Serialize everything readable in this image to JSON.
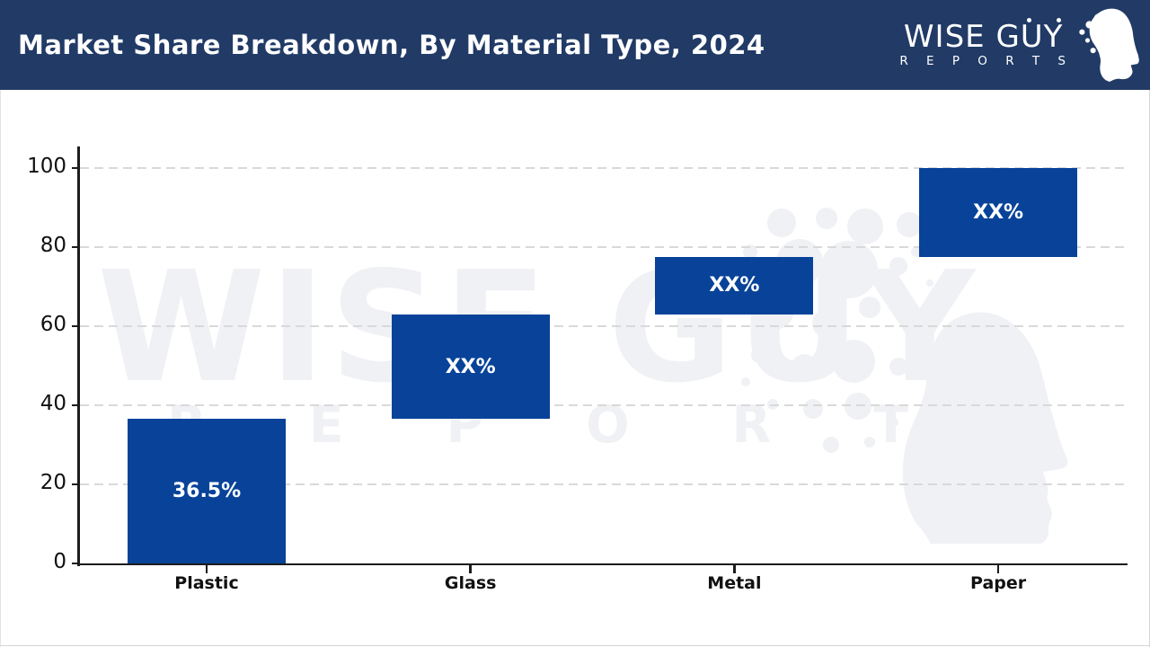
{
  "header": {
    "title": "Market Share Breakdown, By Material Type, 2024",
    "logo": {
      "line1": "WISE GUY",
      "line2": "R E P O R T S"
    }
  },
  "watermark": {
    "line1": "WISE GUY",
    "line2": "R E P O R T S"
  },
  "colors": {
    "header_bg": "#213a66",
    "bar": "#084399",
    "bar_label": "#ffffff",
    "axis": "#1c1c1c",
    "grid": "#d9d9d9",
    "watermark": "#f0f1f4"
  },
  "chart_data": {
    "type": "bar",
    "subtype": "waterfall (floating stacked segments, cumulative to 100%)",
    "title": "Market Share Breakdown, By Material Type, 2024",
    "categories": [
      "Plastic",
      "Glass",
      "Metal",
      "Paper"
    ],
    "segments": [
      {
        "category": "Plastic",
        "start": 0,
        "end": 36.5,
        "value": 36.5,
        "label": "36.5%"
      },
      {
        "category": "Glass",
        "start": 36.5,
        "end": 63,
        "value": 26.5,
        "label": "XX%"
      },
      {
        "category": "Metal",
        "start": 63,
        "end": 77.5,
        "value": 14.5,
        "label": "XX%"
      },
      {
        "category": "Paper",
        "start": 77.5,
        "end": 100,
        "value": 22.5,
        "label": "XX%"
      }
    ],
    "xlabel": "",
    "ylabel": "",
    "ylim": [
      0,
      105
    ],
    "yticks": [
      0,
      20,
      40,
      60,
      80,
      100
    ],
    "grid": "dashed horizontal gridlines",
    "legend": null
  }
}
